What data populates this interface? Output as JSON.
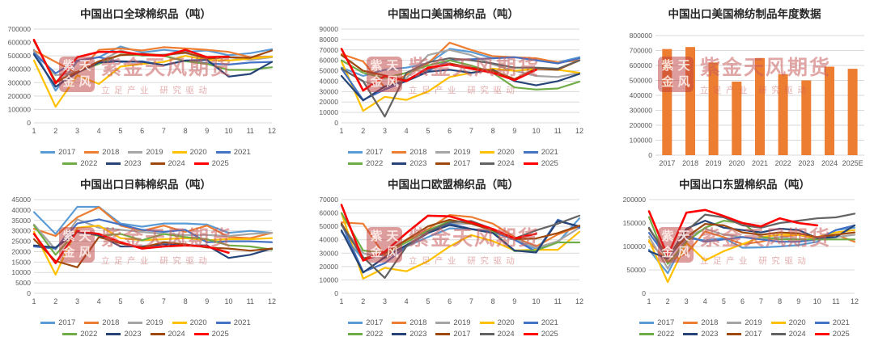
{
  "watermark": {
    "seal_chars": [
      "紫",
      "天",
      "金",
      "风"
    ],
    "brand": "紫金天风期货",
    "slogan": "立足产业 研究驱动",
    "color": "#C95C5C"
  },
  "chart_data": [
    {
      "type": "line",
      "title": "中国出口全球棉织品（吨）",
      "xlabel": "",
      "ylabel": "",
      "x_labels": [
        "1",
        "2",
        "3",
        "4",
        "5",
        "6",
        "7",
        "8",
        "9",
        "10",
        "11",
        "12"
      ],
      "ylim": [
        0,
        700000
      ],
      "y_step": 100000,
      "grid": true,
      "legend_position": "bottom",
      "series": [
        {
          "name": "2017",
          "color": "#5B9BD5",
          "values": [
            545000,
            240000,
            460000,
            490000,
            570000,
            525000,
            545000,
            530000,
            540000,
            505000,
            520000,
            550000
          ]
        },
        {
          "name": "2018",
          "color": "#ED7D31",
          "values": [
            540000,
            455000,
            370000,
            545000,
            555000,
            540000,
            565000,
            555000,
            545000,
            530000,
            490000,
            495000
          ]
        },
        {
          "name": "2019",
          "color": "#A5A5A5",
          "values": [
            535000,
            355000,
            380000,
            455000,
            540000,
            500000,
            510000,
            520000,
            480000,
            490000,
            470000,
            490000
          ]
        },
        {
          "name": "2020",
          "color": "#FFC000",
          "values": [
            465000,
            120000,
            355000,
            290000,
            420000,
            440000,
            455000,
            500000,
            470000,
            465000,
            480000,
            495000
          ]
        },
        {
          "name": "2021",
          "color": "#4472C4",
          "values": [
            520000,
            370000,
            465000,
            490000,
            455000,
            460000,
            430000,
            465000,
            445000,
            435000,
            450000,
            455000
          ]
        },
        {
          "name": "2022",
          "color": "#70AD47",
          "values": [
            610000,
            310000,
            380000,
            440000,
            510000,
            505000,
            500000,
            460000,
            440000,
            395000,
            395000,
            415000
          ]
        },
        {
          "name": "2023",
          "color": "#264478",
          "values": [
            510000,
            270000,
            375000,
            450000,
            460000,
            455000,
            430000,
            465000,
            470000,
            345000,
            365000,
            455000
          ]
        },
        {
          "name": "2024",
          "color": "#9E480E",
          "values": [
            615000,
            300000,
            380000,
            460000,
            505000,
            515000,
            505000,
            525000,
            480000,
            490000,
            485000,
            540000
          ]
        },
        {
          "name": "2025",
          "color": "#FF0000",
          "values": [
            620000,
            295000,
            490000,
            530000,
            530000,
            510000,
            500000,
            545000,
            490000,
            495000
          ]
        }
      ]
    },
    {
      "type": "line",
      "title": "中国出口美国棉织品（吨）",
      "xlabel": "",
      "ylabel": "",
      "x_labels": [
        "1",
        "2",
        "3",
        "4",
        "5",
        "6",
        "7",
        "8",
        "9",
        "10",
        "11",
        "12"
      ],
      "ylim": [
        0,
        90000
      ],
      "y_step": 10000,
      "grid": true,
      "legend_position": "bottom",
      "series": [
        {
          "name": "2017",
          "color": "#5B9BD5",
          "values": [
            53000,
            45000,
            51000,
            53000,
            57000,
            71000,
            68000,
            62000,
            63000,
            61000,
            58000,
            63000
          ]
        },
        {
          "name": "2018",
          "color": "#ED7D31",
          "values": [
            66000,
            59000,
            34000,
            46000,
            57000,
            77000,
            70000,
            64000,
            63000,
            62000,
            58000,
            60000
          ]
        },
        {
          "name": "2019",
          "color": "#A5A5A5",
          "values": [
            52000,
            40000,
            33000,
            43000,
            65000,
            70000,
            65000,
            56000,
            50000,
            45000,
            44000,
            48000
          ]
        },
        {
          "name": "2020",
          "color": "#FFC000",
          "values": [
            59000,
            11500,
            25000,
            22000,
            30000,
            44000,
            48000,
            52000,
            50000,
            52000,
            51000,
            48000
          ]
        },
        {
          "name": "2021",
          "color": "#4472C4",
          "values": [
            52000,
            22000,
            32000,
            40000,
            50000,
            60000,
            61000,
            62000,
            63000,
            60000,
            57000,
            62000
          ]
        },
        {
          "name": "2022",
          "color": "#70AD47",
          "values": [
            60000,
            48000,
            43000,
            48000,
            55000,
            60000,
            55000,
            48000,
            34000,
            32000,
            33000,
            39500
          ]
        },
        {
          "name": "2023",
          "color": "#264478",
          "values": [
            45000,
            21500,
            35000,
            40000,
            49000,
            51000,
            48000,
            51000,
            40000,
            36000,
            40000,
            47000
          ]
        },
        {
          "name": "2017",
          "color": "#9E480E",
          "values": [
            65000,
            50000,
            45500,
            41000,
            52000,
            57000,
            53000,
            50000,
            42000,
            52000,
            51000,
            60000
          ]
        },
        {
          "name": "2024",
          "color": "#636363",
          "values": [
            52000,
            40000,
            6000,
            48000,
            58000,
            62000,
            60000,
            57000,
            53000,
            53000,
            52000,
            60000
          ]
        },
        {
          "name": "2025",
          "color": "#FF0000",
          "values": [
            71000,
            31000,
            45000,
            40000,
            53000,
            56000,
            52000,
            48000,
            41000,
            51000
          ]
        }
      ]
    },
    {
      "type": "bar",
      "title": "中国出口美国棉纺制品年度数据",
      "xlabel": "",
      "ylabel": "",
      "categories": [
        "2017",
        "2018",
        "2019",
        "2020",
        "2021",
        "2022",
        "2023",
        "2024",
        "2025E"
      ],
      "values": [
        710000,
        723000,
        620000,
        492000,
        650000,
        542000,
        500000,
        592000,
        578000
      ],
      "ylim": [
        0,
        800000
      ],
      "y_step": 100000,
      "grid": true,
      "bar_color": "#ED7D31"
    },
    {
      "type": "line",
      "title": "中国出口日韩棉织品（吨）",
      "xlabel": "",
      "ylabel": "",
      "x_labels": [
        "1",
        "2",
        "3",
        "4",
        "5",
        "6",
        "7",
        "8",
        "9",
        "10",
        "11",
        "12"
      ],
      "ylim": [
        0,
        45000
      ],
      "y_step": 5000,
      "grid": true,
      "legend_position": "bottom",
      "series": [
        {
          "name": "2017",
          "color": "#5B9BD5",
          "values": [
            39000,
            28500,
            41500,
            41500,
            33500,
            32000,
            33500,
            33500,
            33000,
            29000,
            30000,
            29000
          ]
        },
        {
          "name": "2018",
          "color": "#ED7D31",
          "values": [
            31000,
            27500,
            36500,
            41300,
            32500,
            30000,
            32500,
            29500,
            32500,
            27000,
            26500,
            29000
          ]
        },
        {
          "name": "2019",
          "color": "#A5A5A5",
          "values": [
            33000,
            21000,
            35500,
            31500,
            30500,
            29500,
            28500,
            28000,
            28000,
            27500,
            28500,
            29000
          ]
        },
        {
          "name": "2020",
          "color": "#FFC000",
          "values": [
            29500,
            9000,
            31500,
            32500,
            26500,
            25500,
            26000,
            26500,
            25500,
            26000,
            26000,
            26500
          ]
        },
        {
          "name": "2021",
          "color": "#4472C4",
          "values": [
            22500,
            21500,
            33500,
            35500,
            33000,
            30500,
            29500,
            30500,
            24500,
            25000,
            25000,
            24500
          ]
        },
        {
          "name": "2022",
          "color": "#70AD47",
          "values": [
            32500,
            18500,
            30000,
            27500,
            28500,
            25500,
            28500,
            27000,
            26000,
            23000,
            22500,
            21000
          ]
        },
        {
          "name": "2023",
          "color": "#264478",
          "values": [
            23000,
            22000,
            29500,
            28000,
            22500,
            22500,
            23500,
            23000,
            23000,
            17000,
            18500,
            21500
          ]
        },
        {
          "name": "2024",
          "color": "#9E480E",
          "values": [
            26000,
            15500,
            12500,
            27000,
            24000,
            22000,
            24500,
            23500,
            22000,
            21500,
            20500,
            21500
          ]
        },
        {
          "name": "2025",
          "color": "#FF0000",
          "values": [
            28500,
            14500,
            30000,
            28500,
            24500,
            21500,
            22500,
            23000,
            22500,
            19500
          ]
        }
      ]
    },
    {
      "type": "line",
      "title": "中国出口欧盟棉织品（吨）",
      "xlabel": "",
      "ylabel": "",
      "x_labels": [
        "1",
        "2",
        "3",
        "4",
        "5",
        "6",
        "7",
        "8",
        "9",
        "10",
        "11",
        "12"
      ],
      "ylim": [
        0,
        70000
      ],
      "y_step": 10000,
      "grid": true,
      "legend_position": "bottom",
      "series": [
        {
          "name": "2017",
          "color": "#5B9BD5",
          "values": [
            46000,
            25000,
            29000,
            35000,
            42000,
            48500,
            48000,
            46000,
            40000,
            33000,
            38000,
            56000
          ]
        },
        {
          "name": "2018",
          "color": "#ED7D31",
          "values": [
            53000,
            52000,
            28000,
            39000,
            48000,
            58500,
            57000,
            52000,
            42000,
            35000,
            44000,
            50000
          ]
        },
        {
          "name": "2019",
          "color": "#A5A5A5",
          "values": [
            51000,
            30000,
            26000,
            35000,
            45000,
            52000,
            52000,
            47000,
            41000,
            34000,
            39000,
            49000
          ]
        },
        {
          "name": "2020",
          "color": "#FFC000",
          "values": [
            60000,
            11000,
            19000,
            16500,
            24000,
            35000,
            43500,
            39000,
            32000,
            32500,
            32500,
            46000
          ]
        },
        {
          "name": "2021",
          "color": "#4472C4",
          "values": [
            52000,
            16000,
            22500,
            35000,
            45000,
            52000,
            48000,
            46000,
            40000,
            31000,
            55000,
            49000
          ]
        },
        {
          "name": "2022",
          "color": "#70AD47",
          "values": [
            60000,
            32000,
            30000,
            38000,
            47000,
            54000,
            53000,
            46000,
            31500,
            32000,
            38000,
            38000
          ]
        },
        {
          "name": "2023",
          "color": "#264478",
          "values": [
            47000,
            15500,
            27000,
            36000,
            45000,
            51000,
            48000,
            45000,
            32000,
            30500,
            54000,
            50000
          ]
        },
        {
          "name": "2017",
          "color": "#9E480E",
          "values": [
            52000,
            26000,
            30000,
            40000,
            50000,
            55000,
            52000,
            47000,
            40500,
            41000,
            45000,
            50500
          ]
        },
        {
          "name": "2024",
          "color": "#636363",
          "values": [
            51000,
            27000,
            11500,
            35000,
            46000,
            53000,
            54000,
            48000,
            41000,
            47000,
            52000,
            58000
          ]
        },
        {
          "name": "2025",
          "color": "#FF0000",
          "values": [
            66000,
            24500,
            31000,
            45000,
            58000,
            57500,
            53000,
            48000,
            41000,
            44500
          ]
        }
      ]
    },
    {
      "type": "line",
      "title": "中国出口东盟棉织品（吨）",
      "xlabel": "",
      "ylabel": "",
      "x_labels": [
        "1",
        "2",
        "3",
        "4",
        "5",
        "6",
        "7",
        "8",
        "9",
        "10",
        "11",
        "12"
      ],
      "ylim": [
        0,
        200000
      ],
      "y_step": 50000,
      "grid": true,
      "legend_position": "bottom",
      "series": [
        {
          "name": "2017",
          "color": "#5B9BD5",
          "values": [
            93000,
            43000,
            118000,
            113000,
            118000,
            97000,
            98000,
            100000,
            103000,
            110000,
            135000,
            140000
          ]
        },
        {
          "name": "2018",
          "color": "#ED7D31",
          "values": [
            110000,
            68000,
            85000,
            132000,
            120000,
            105000,
            110000,
            120000,
            125000,
            115000,
            125000,
            110000
          ]
        },
        {
          "name": "2019",
          "color": "#A5A5A5",
          "values": [
            121000,
            53000,
            120000,
            138000,
            125000,
            120000,
            115000,
            120000,
            115000,
            115000,
            120000,
            125000
          ]
        },
        {
          "name": "2020",
          "color": "#FFC000",
          "values": [
            113000,
            24000,
            108000,
            70000,
            90000,
            105000,
            120000,
            125000,
            125000,
            120000,
            130000,
            135000
          ]
        },
        {
          "name": "2021",
          "color": "#4472C4",
          "values": [
            129000,
            74000,
            123000,
            110000,
            115000,
            120000,
            115000,
            110000,
            110000,
            115000,
            135000,
            145000
          ]
        },
        {
          "name": "2022",
          "color": "#70AD47",
          "values": [
            163000,
            63000,
            110000,
            140000,
            155000,
            150000,
            120000,
            115000,
            115000,
            115000,
            115000,
            115000
          ]
        },
        {
          "name": "2023",
          "color": "#264478",
          "values": [
            90000,
            74000,
            138000,
            155000,
            140000,
            135000,
            130000,
            138000,
            135000,
            118000,
            120000,
            145000
          ]
        },
        {
          "name": "2017",
          "color": "#9E480E",
          "values": [
            138000,
            80000,
            120000,
            148000,
            145000,
            130000,
            125000,
            130000,
            128000,
            120000,
            125000,
            130000
          ]
        },
        {
          "name": "2024",
          "color": "#636363",
          "values": [
            140000,
            75000,
            133000,
            168000,
            162000,
            145000,
            140000,
            150000,
            155000,
            160000,
            162000,
            170000
          ]
        },
        {
          "name": "2025",
          "color": "#FF0000",
          "values": [
            175000,
            80000,
            172000,
            178000,
            165000,
            150000,
            143000,
            160000,
            150000,
            145000
          ]
        }
      ]
    }
  ]
}
